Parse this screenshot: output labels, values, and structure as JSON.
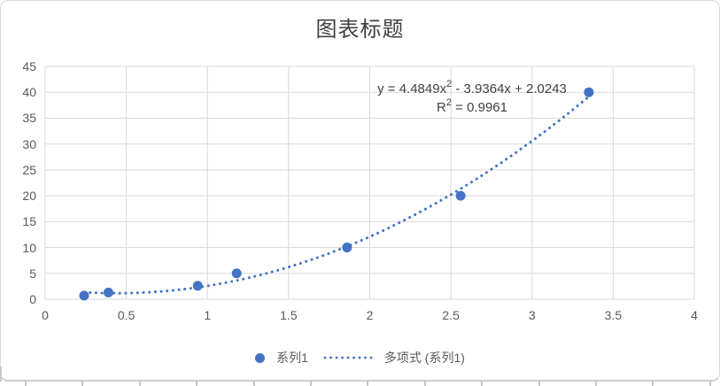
{
  "title": "图表标题",
  "colors": {
    "series": "#4472C4",
    "gridline": "#D9D9D9",
    "axis_text": "#595959",
    "title_text": "#404040",
    "label_text": "#404040"
  },
  "trendline_label": {
    "line1_base": "y = 4.4849x",
    "line1_sup": "2",
    "line1_rest": " - 3.9364x + 2.0243",
    "line2_base": "R",
    "line2_sup": "2",
    "line2_rest": " = 0.9961"
  },
  "legend": {
    "series1": "系列1",
    "trend": "多项式 (系列1)"
  },
  "chart_data": {
    "type": "scatter",
    "title": "图表标题",
    "series": [
      {
        "name": "系列1",
        "points": [
          [
            0.24,
            0.7
          ],
          [
            0.39,
            1.3
          ],
          [
            0.94,
            2.6
          ],
          [
            1.18,
            5
          ],
          [
            1.86,
            10
          ],
          [
            2.56,
            20
          ],
          [
            3.35,
            40
          ]
        ]
      }
    ],
    "trendline": {
      "name": "多项式 (系列1)",
      "type": "polynomial",
      "order": 2,
      "coefficients": {
        "a": 4.4849,
        "b": -3.9364,
        "c": 2.0243
      },
      "r_squared": 0.9961,
      "equation_text": "y = 4.4849x² - 3.9364x + 2.0243",
      "r2_text": "R² = 0.9961",
      "x_range": [
        0.24,
        3.35
      ]
    },
    "xlim": [
      0,
      4
    ],
    "ylim": [
      0,
      45
    ],
    "x_ticks": [
      0,
      0.5,
      1,
      1.5,
      2,
      2.5,
      3,
      3.5,
      4
    ],
    "x_tick_labels": [
      "0",
      "0.5",
      "1",
      "1.5",
      "2",
      "2.5",
      "3",
      "3.5",
      "4"
    ],
    "y_ticks": [
      0,
      5,
      10,
      15,
      20,
      25,
      30,
      35,
      40,
      45
    ],
    "y_tick_labels": [
      "0",
      "5",
      "10",
      "15",
      "20",
      "25",
      "30",
      "35",
      "40",
      "45"
    ],
    "grid": true,
    "legend_position": "bottom"
  }
}
